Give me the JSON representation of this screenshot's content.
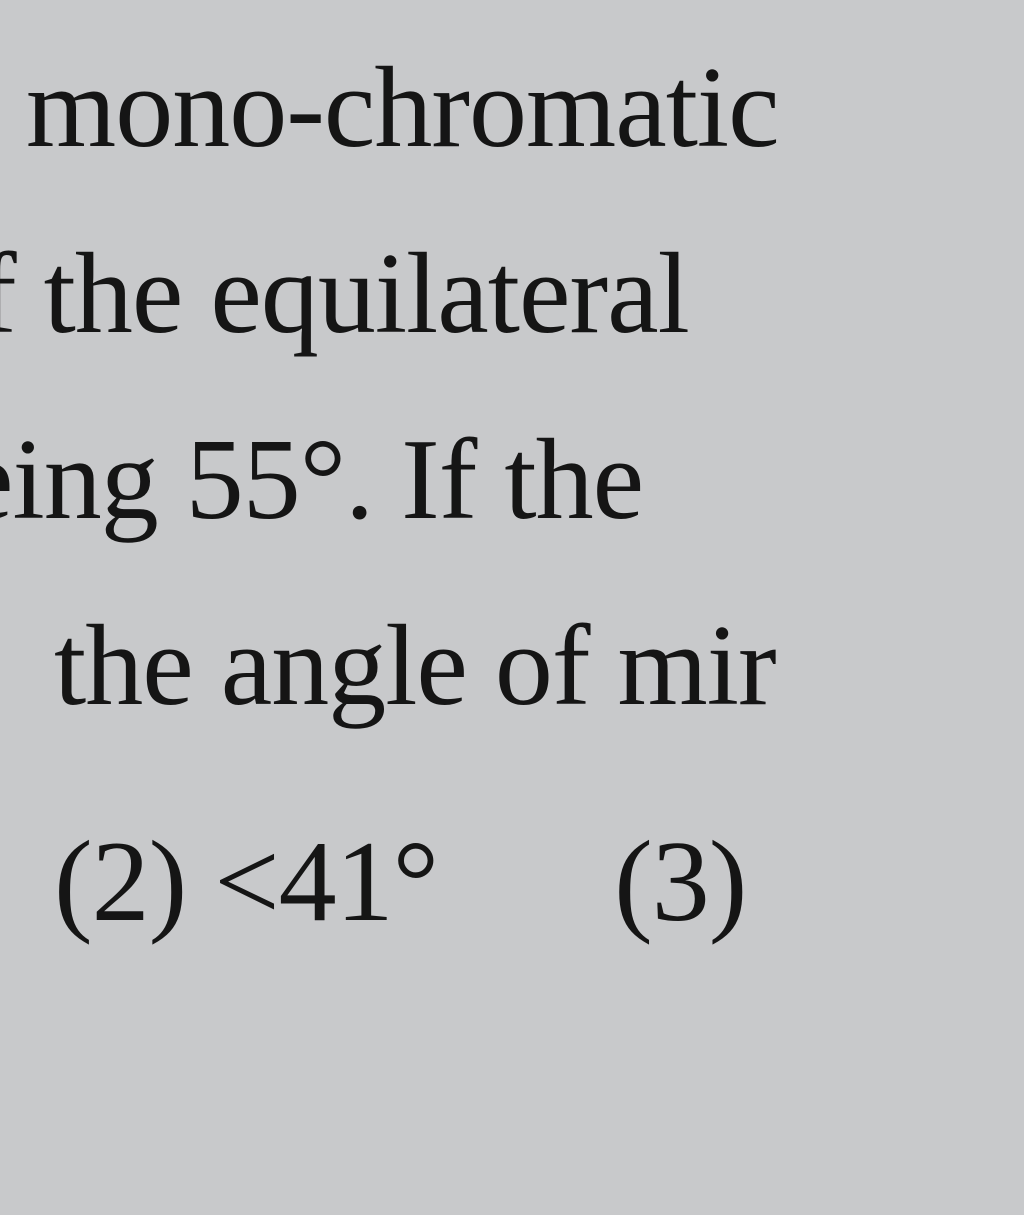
{
  "text": {
    "line1": "mono-chromatic",
    "line2": "f the equilateral",
    "line3": "eing 55°. If the",
    "line4": "the angle of mir",
    "option2_label": "(2)",
    "option2_value": "<41°",
    "option3_label": "(3)"
  },
  "style": {
    "background_color": "#c8c9cb",
    "text_color": "#151515",
    "font_family": "Times New Roman",
    "font_size_pt": 87,
    "font_weight": 400
  }
}
